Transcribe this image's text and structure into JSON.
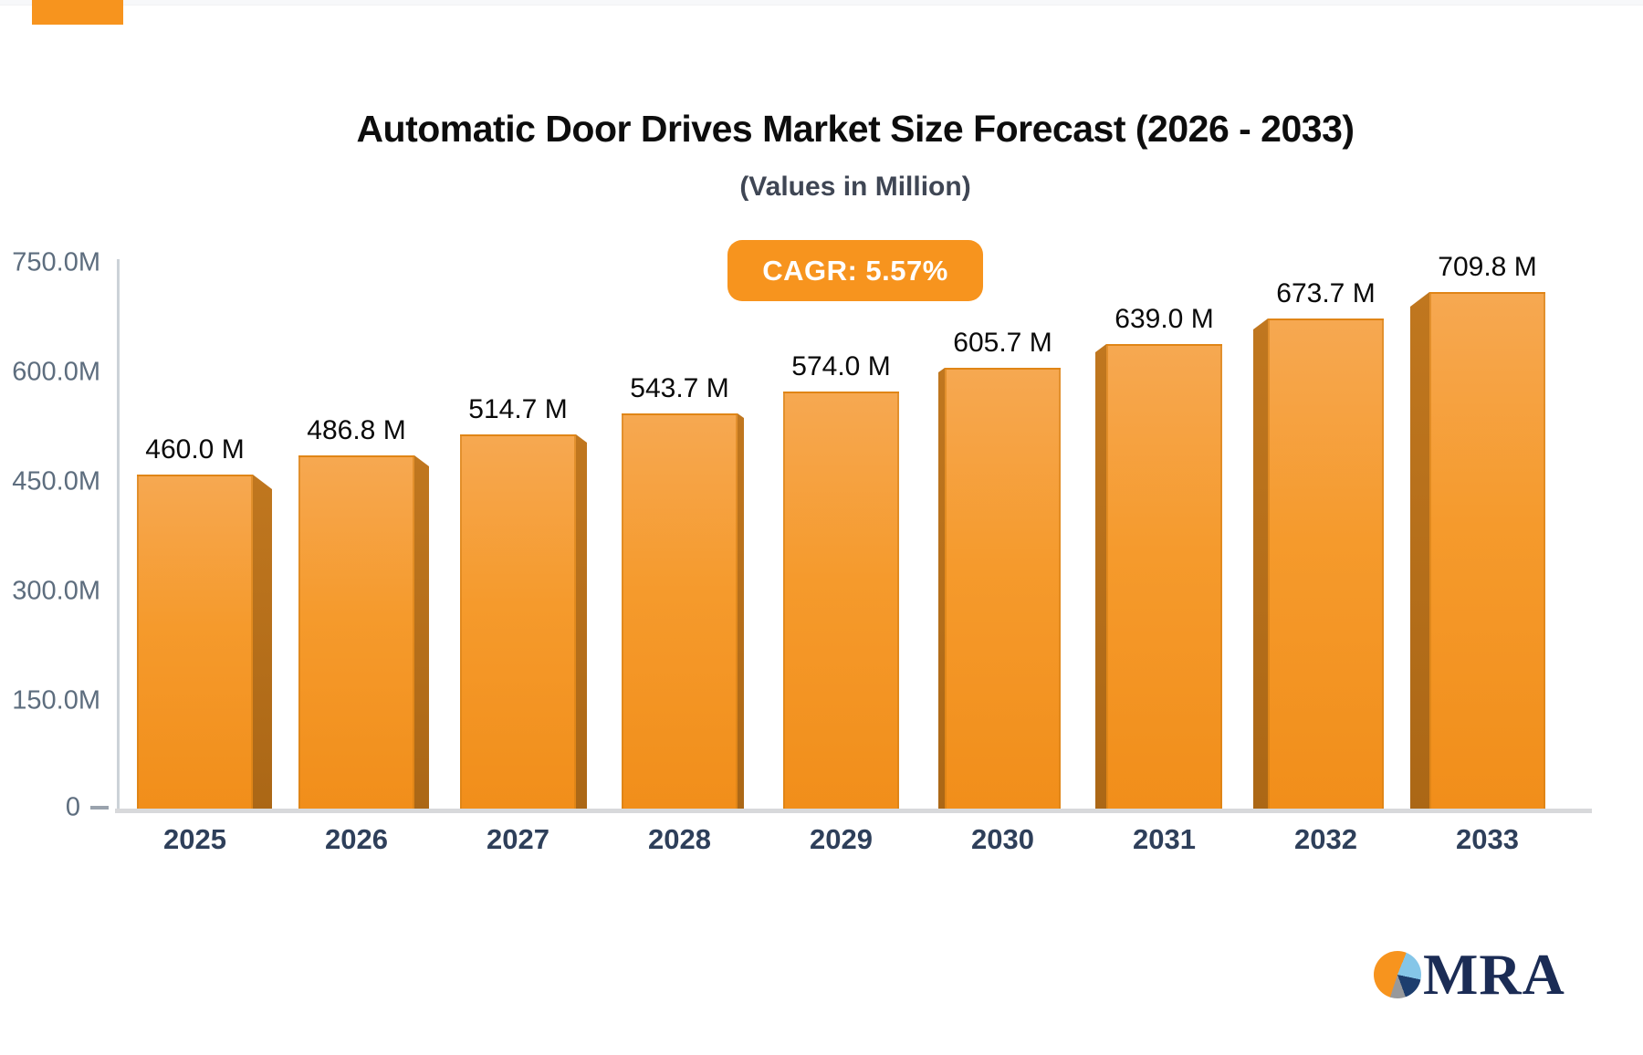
{
  "page": {
    "accent_color": "#f7941e",
    "background": "#ffffff"
  },
  "header": {
    "title": "Automatic Door Drives Market Size Forecast (2026 - 2033)",
    "subtitle": "(Values in Million)",
    "cagr_badge": "CAGR: 5.57%"
  },
  "chart_data": {
    "type": "bar",
    "title": "Automatic Door Drives Market Size Forecast (2026 - 2033)",
    "subtitle": "(Values in Million)",
    "categories": [
      "2025",
      "2026",
      "2027",
      "2028",
      "2029",
      "2030",
      "2031",
      "2032",
      "2033"
    ],
    "values": [
      460.0,
      486.8,
      514.7,
      543.7,
      574.0,
      605.7,
      639.0,
      673.7,
      709.8
    ],
    "value_labels": [
      "460.0 M",
      "486.8 M",
      "514.7 M",
      "543.7 M",
      "574.0 M",
      "605.7 M",
      "639.0 M",
      "673.7 M",
      "709.8 M"
    ],
    "unit": "M",
    "cagr": "CAGR: 5.57%",
    "ylim": [
      0,
      750
    ],
    "y_ticks": [
      "750.0M",
      "600.0M",
      "450.0M",
      "300.0M",
      "150.0M",
      "0"
    ],
    "grid": false,
    "legend": false,
    "bar_color": "#f59a2c",
    "bar_side_color": "#b5701b",
    "badge_color": "#f7941e",
    "axis_label_color": "#5d6d7e",
    "category_label_color": "#2e3f5a"
  },
  "logo": {
    "text": "MRA",
    "pie_colors": [
      "#f7941e",
      "#85c6e8",
      "#1d3e6e",
      "#98999b"
    ],
    "text_color": "#1b2c55"
  }
}
